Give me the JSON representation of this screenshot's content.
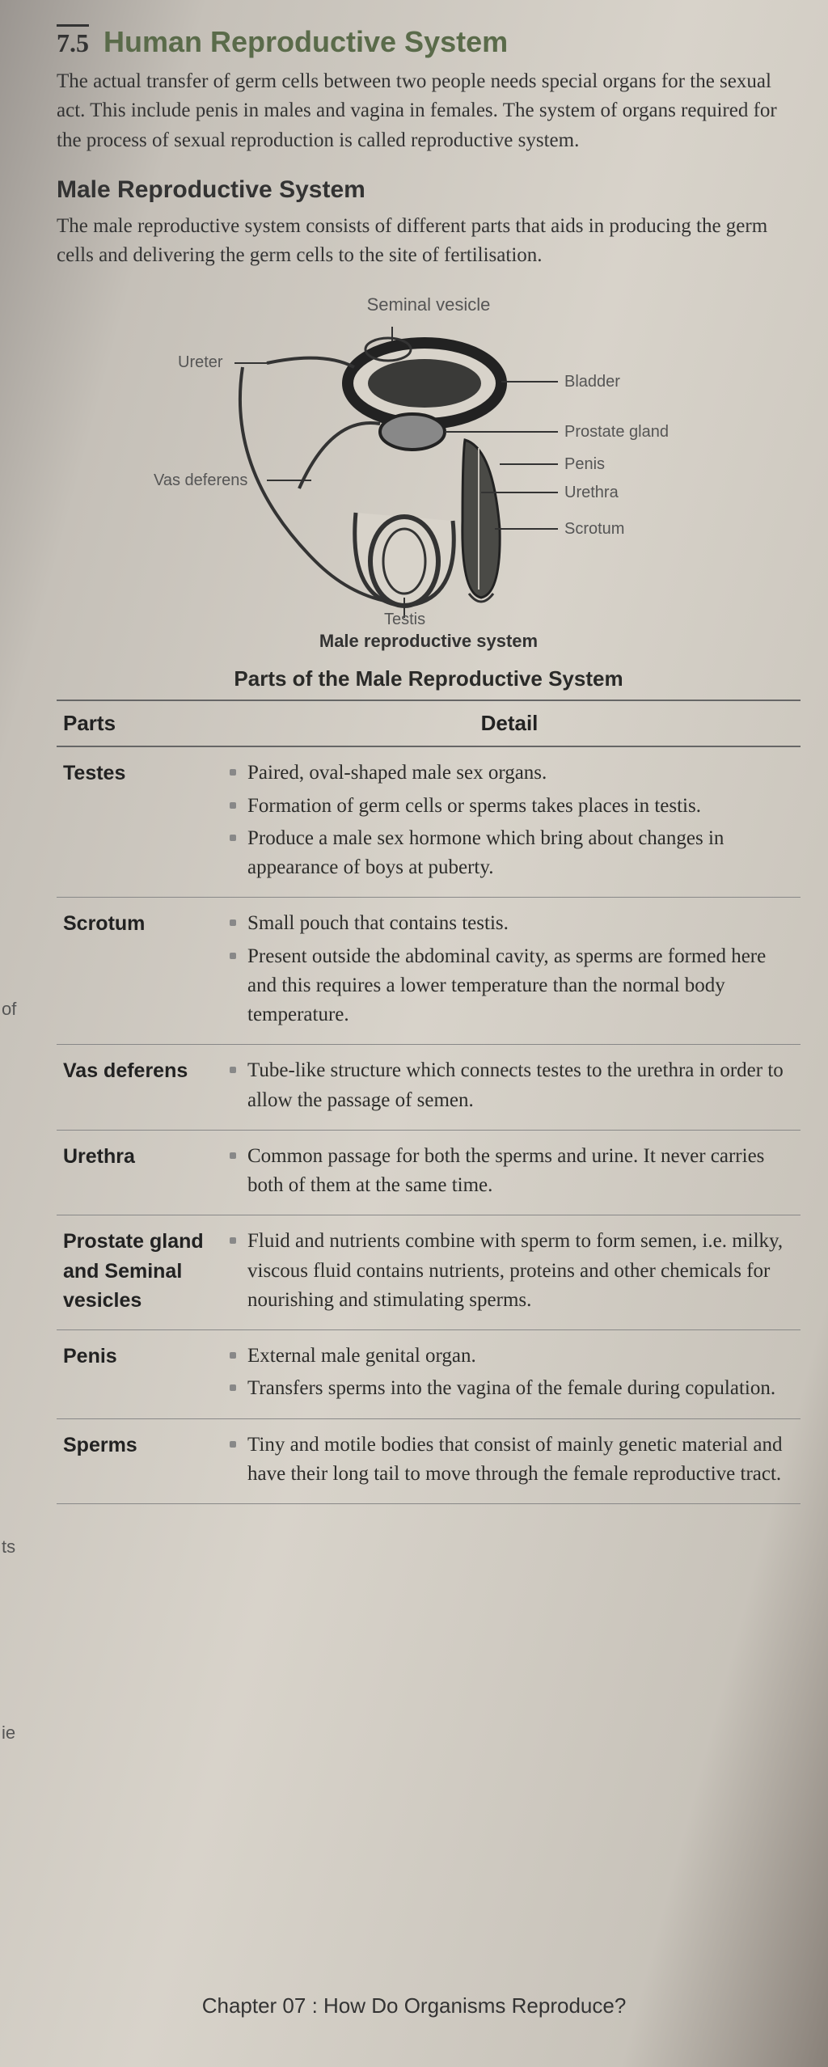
{
  "section": {
    "number": "7.5",
    "title": "Human Reproductive System"
  },
  "intro": "The actual transfer of germ cells between two people needs special organs for the sexual act. This include penis in males and vagina in females. The system of organs required for the process of sexual reproduction is called reproductive system.",
  "male": {
    "heading": "Male Reproductive System",
    "text": "The male reproductive system consists of different parts that aids in producing the germ cells and delivering the germ cells to the site of fertilisation."
  },
  "diagram": {
    "top_label": "Seminal vesicle",
    "labels": {
      "ureter": "Ureter",
      "vas_deferens": "Vas deferens",
      "bladder": "Bladder",
      "prostate": "Prostate gland",
      "penis": "Penis",
      "urethra": "Urethra",
      "scrotum": "Scrotum",
      "testis": "Testis"
    },
    "caption": "Male reproductive system"
  },
  "table": {
    "title": "Parts of the Male Reproductive System",
    "col_parts": "Parts",
    "col_detail": "Detail",
    "rows": [
      {
        "name": "Testes",
        "details": [
          "Paired, oval-shaped male sex organs.",
          "Formation of germ cells or sperms takes places in testis.",
          "Produce a male sex hormone which bring about changes in appearance of boys at puberty."
        ]
      },
      {
        "name": "Scrotum",
        "details": [
          "Small pouch that contains testis.",
          "Present outside the abdominal cavity, as sperms are formed here and this requires a lower temperature than the normal body temperature."
        ]
      },
      {
        "name": "Vas deferens",
        "details": [
          "Tube-like structure which connects testes to the urethra in order to allow the passage of semen."
        ]
      },
      {
        "name": "Urethra",
        "details": [
          "Common passage for both the sperms and urine. It never carries both of them at the same time."
        ]
      },
      {
        "name": "Prostate gland and Seminal vesicles",
        "details": [
          "Fluid and nutrients combine with sperm to form semen, i.e. milky, viscous fluid contains nutrients, proteins and other chemicals for nourishing and stimulating sperms."
        ]
      },
      {
        "name": "Penis",
        "details": [
          "External male genital organ.",
          "Transfers sperms into the vagina of the female during copulation."
        ]
      },
      {
        "name": "Sperms",
        "details": [
          "Tiny and motile bodies that consist of mainly genetic material and have their long tail to move through the female reproductive tract."
        ]
      }
    ]
  },
  "margin": {
    "of": "of",
    "ts": "ts",
    "ie": "ie"
  },
  "footer": "Chapter 07 : How Do Organisms Reproduce?"
}
